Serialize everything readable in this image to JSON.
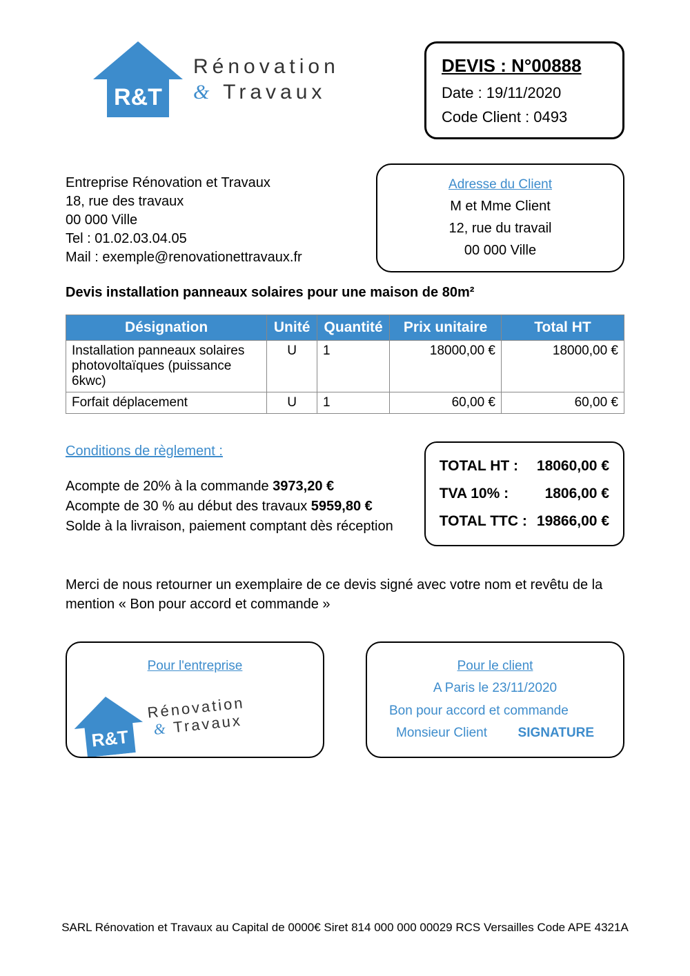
{
  "brand": {
    "name_line1": "Rénovation",
    "name_line2_amp": "&",
    "name_line2_rest": " Travaux",
    "short": "R&T",
    "color": "#3d8ccc"
  },
  "devis_box": {
    "title": "DEVIS : N°00888",
    "date_label": "Date : 19/11/2020",
    "code_label": "Code Client : 0493"
  },
  "company": {
    "name": "Entreprise Rénovation et Travaux",
    "addr1": "18, rue des travaux",
    "addr2": "00 000 Ville",
    "tel": "Tel : 01.02.03.04.05",
    "mail": "Mail : exemple@renovationettravaux.fr"
  },
  "client": {
    "head": "Adresse du Client",
    "name": "M et Mme Client",
    "addr1": "12, rue du travail",
    "addr2": "00 000 Ville"
  },
  "subject": "Devis installation panneaux solaires pour une maison de 80m²",
  "table": {
    "columns": [
      "Désignation",
      "Unité",
      "Quantité",
      "Prix unitaire",
      "Total HT"
    ],
    "col_widths": [
      "36%",
      "9%",
      "13%",
      "20%",
      "22%"
    ],
    "rows": [
      {
        "designation": "Installation panneaux solaires photovoltaïques (puissance 6kwc)",
        "unite": "U",
        "qte": "1",
        "pu": "18000,00 €",
        "total": "18000,00 €"
      },
      {
        "designation": "Forfait déplacement",
        "unite": "U",
        "qte": "1",
        "pu": "60,00 €",
        "total": "60,00 €"
      }
    ]
  },
  "conditions": {
    "head": "Conditions de règlement :",
    "line1_pre": "Acompte de 20% à la commande ",
    "line1_bold": "3973,20 €",
    "line2_pre": "Acompte de 30 % au début des travaux ",
    "line2_bold": "5959,80 €",
    "line3": "Solde à la livraison, paiement comptant dès réception"
  },
  "totals": {
    "ht_label": "TOTAL HT :",
    "ht_value": "18060,00 €",
    "tva_label": "TVA 10% :",
    "tva_value": "1806,00 €",
    "ttc_label": "TOTAL TTC :",
    "ttc_value": "19866,00 €"
  },
  "return_note": "Merci de nous retourner un exemplaire de ce devis signé avec votre nom et revêtu de la mention « Bon pour accord et commande »",
  "sign_entreprise": {
    "head": "Pour l'entreprise"
  },
  "sign_client": {
    "head": "Pour le client",
    "date": "A Paris le 23/11/2020",
    "accord": "Bon pour accord et commande",
    "name": "Monsieur Client",
    "sig": "SIGNATURE"
  },
  "footer": "SARL Rénovation et Travaux au Capital de 0000€ Siret 814 000 000 00029 RCS Versailles Code APE 4321A"
}
